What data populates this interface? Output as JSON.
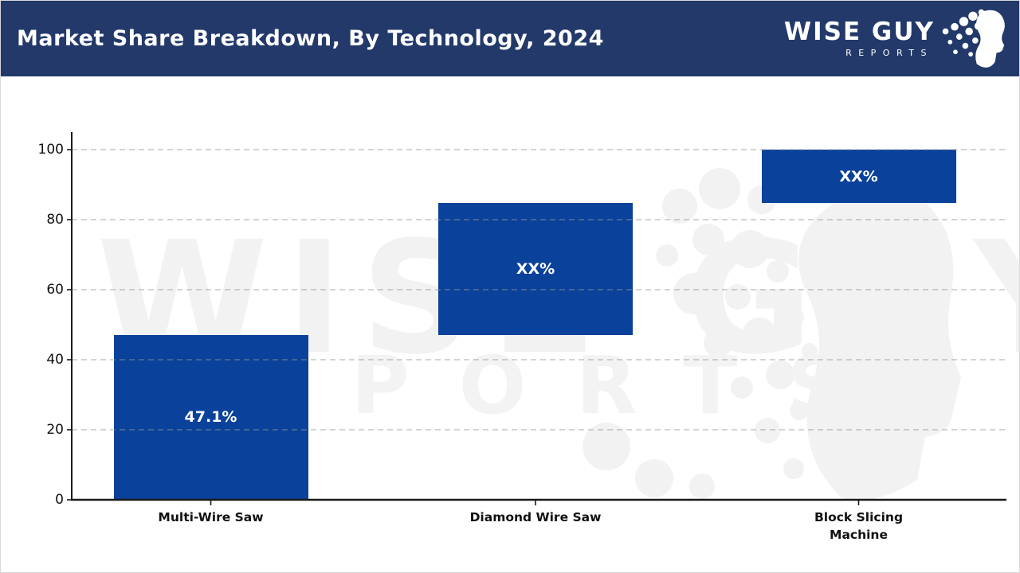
{
  "header": {
    "title": "Market Share Breakdown, By Technology, 2024",
    "bg_color": "#22396a",
    "logo": {
      "line1": "WISE GUY",
      "line2": "REPORTS"
    }
  },
  "watermark": {
    "line1": "WISE GUY",
    "line2": "REPORTS"
  },
  "chart_data": {
    "type": "bar",
    "subtype": "waterfall",
    "title": "Market Share Breakdown, By Technology, 2024",
    "xlabel": "",
    "ylabel": "",
    "categories": [
      "Multi-Wire Saw",
      "Diamond Wire Saw",
      "Block Slicing Machine"
    ],
    "segments": [
      {
        "category": "Multi-Wire Saw",
        "start": 0,
        "end": 47.1,
        "label": "47.1%"
      },
      {
        "category": "Diamond Wire Saw",
        "start": 47.1,
        "end": 84.7,
        "label": "XX%"
      },
      {
        "category": "Block Slicing Machine",
        "start": 84.7,
        "end": 100,
        "label": "XX%"
      }
    ],
    "yticks": [
      0,
      20,
      40,
      60,
      80,
      100
    ],
    "ylim": [
      0,
      105
    ],
    "grid": true,
    "grid_style": "dashed",
    "legend": false,
    "bar_color": "#0a419a",
    "bar_label_color": "#ffffff",
    "axis_color": "#1a1a1a",
    "grid_color": "#c9c9c9"
  }
}
